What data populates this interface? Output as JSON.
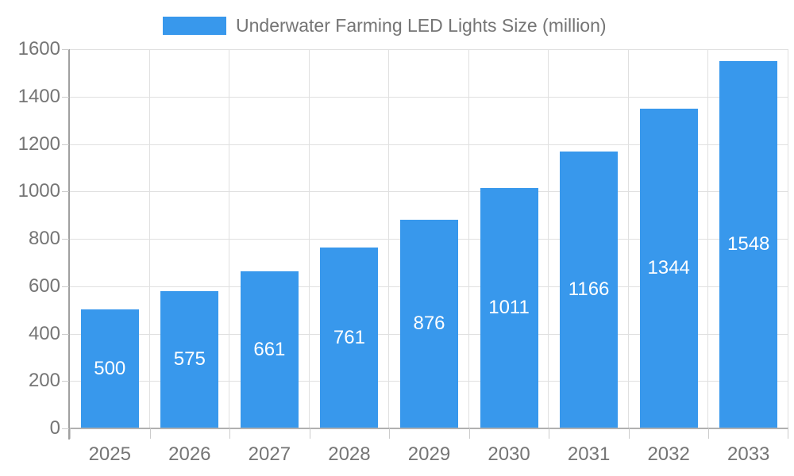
{
  "legend": {
    "label": "Underwater Farming LED Lights Size (million)",
    "swatch_color": "#3898ec"
  },
  "chart_data": {
    "type": "bar",
    "title": "Underwater Farming LED Lights Size (million)",
    "categories": [
      "2025",
      "2026",
      "2027",
      "2028",
      "2029",
      "2030",
      "2031",
      "2032",
      "2033"
    ],
    "values": [
      500,
      575,
      661,
      761,
      876,
      1011,
      1166,
      1344,
      1548
    ],
    "bar_labels": [
      "500",
      "575",
      "661",
      "761",
      "876",
      "1011",
      "1166",
      "1344",
      "1548"
    ],
    "xlabel": "",
    "ylabel": "",
    "ylim": [
      0,
      1600
    ],
    "yticks": [
      0,
      200,
      400,
      600,
      800,
      1000,
      1200,
      1400,
      1600
    ],
    "grid": true,
    "legend_position": "top-center",
    "value_label_position": "inside-center",
    "colors": {
      "bar": "#3898ec",
      "axis_text": "#757575",
      "grid_line": "#e0e0e0",
      "axis_line": "#a0a0a0",
      "value_label": "#ffffff",
      "background": "#ffffff"
    }
  }
}
